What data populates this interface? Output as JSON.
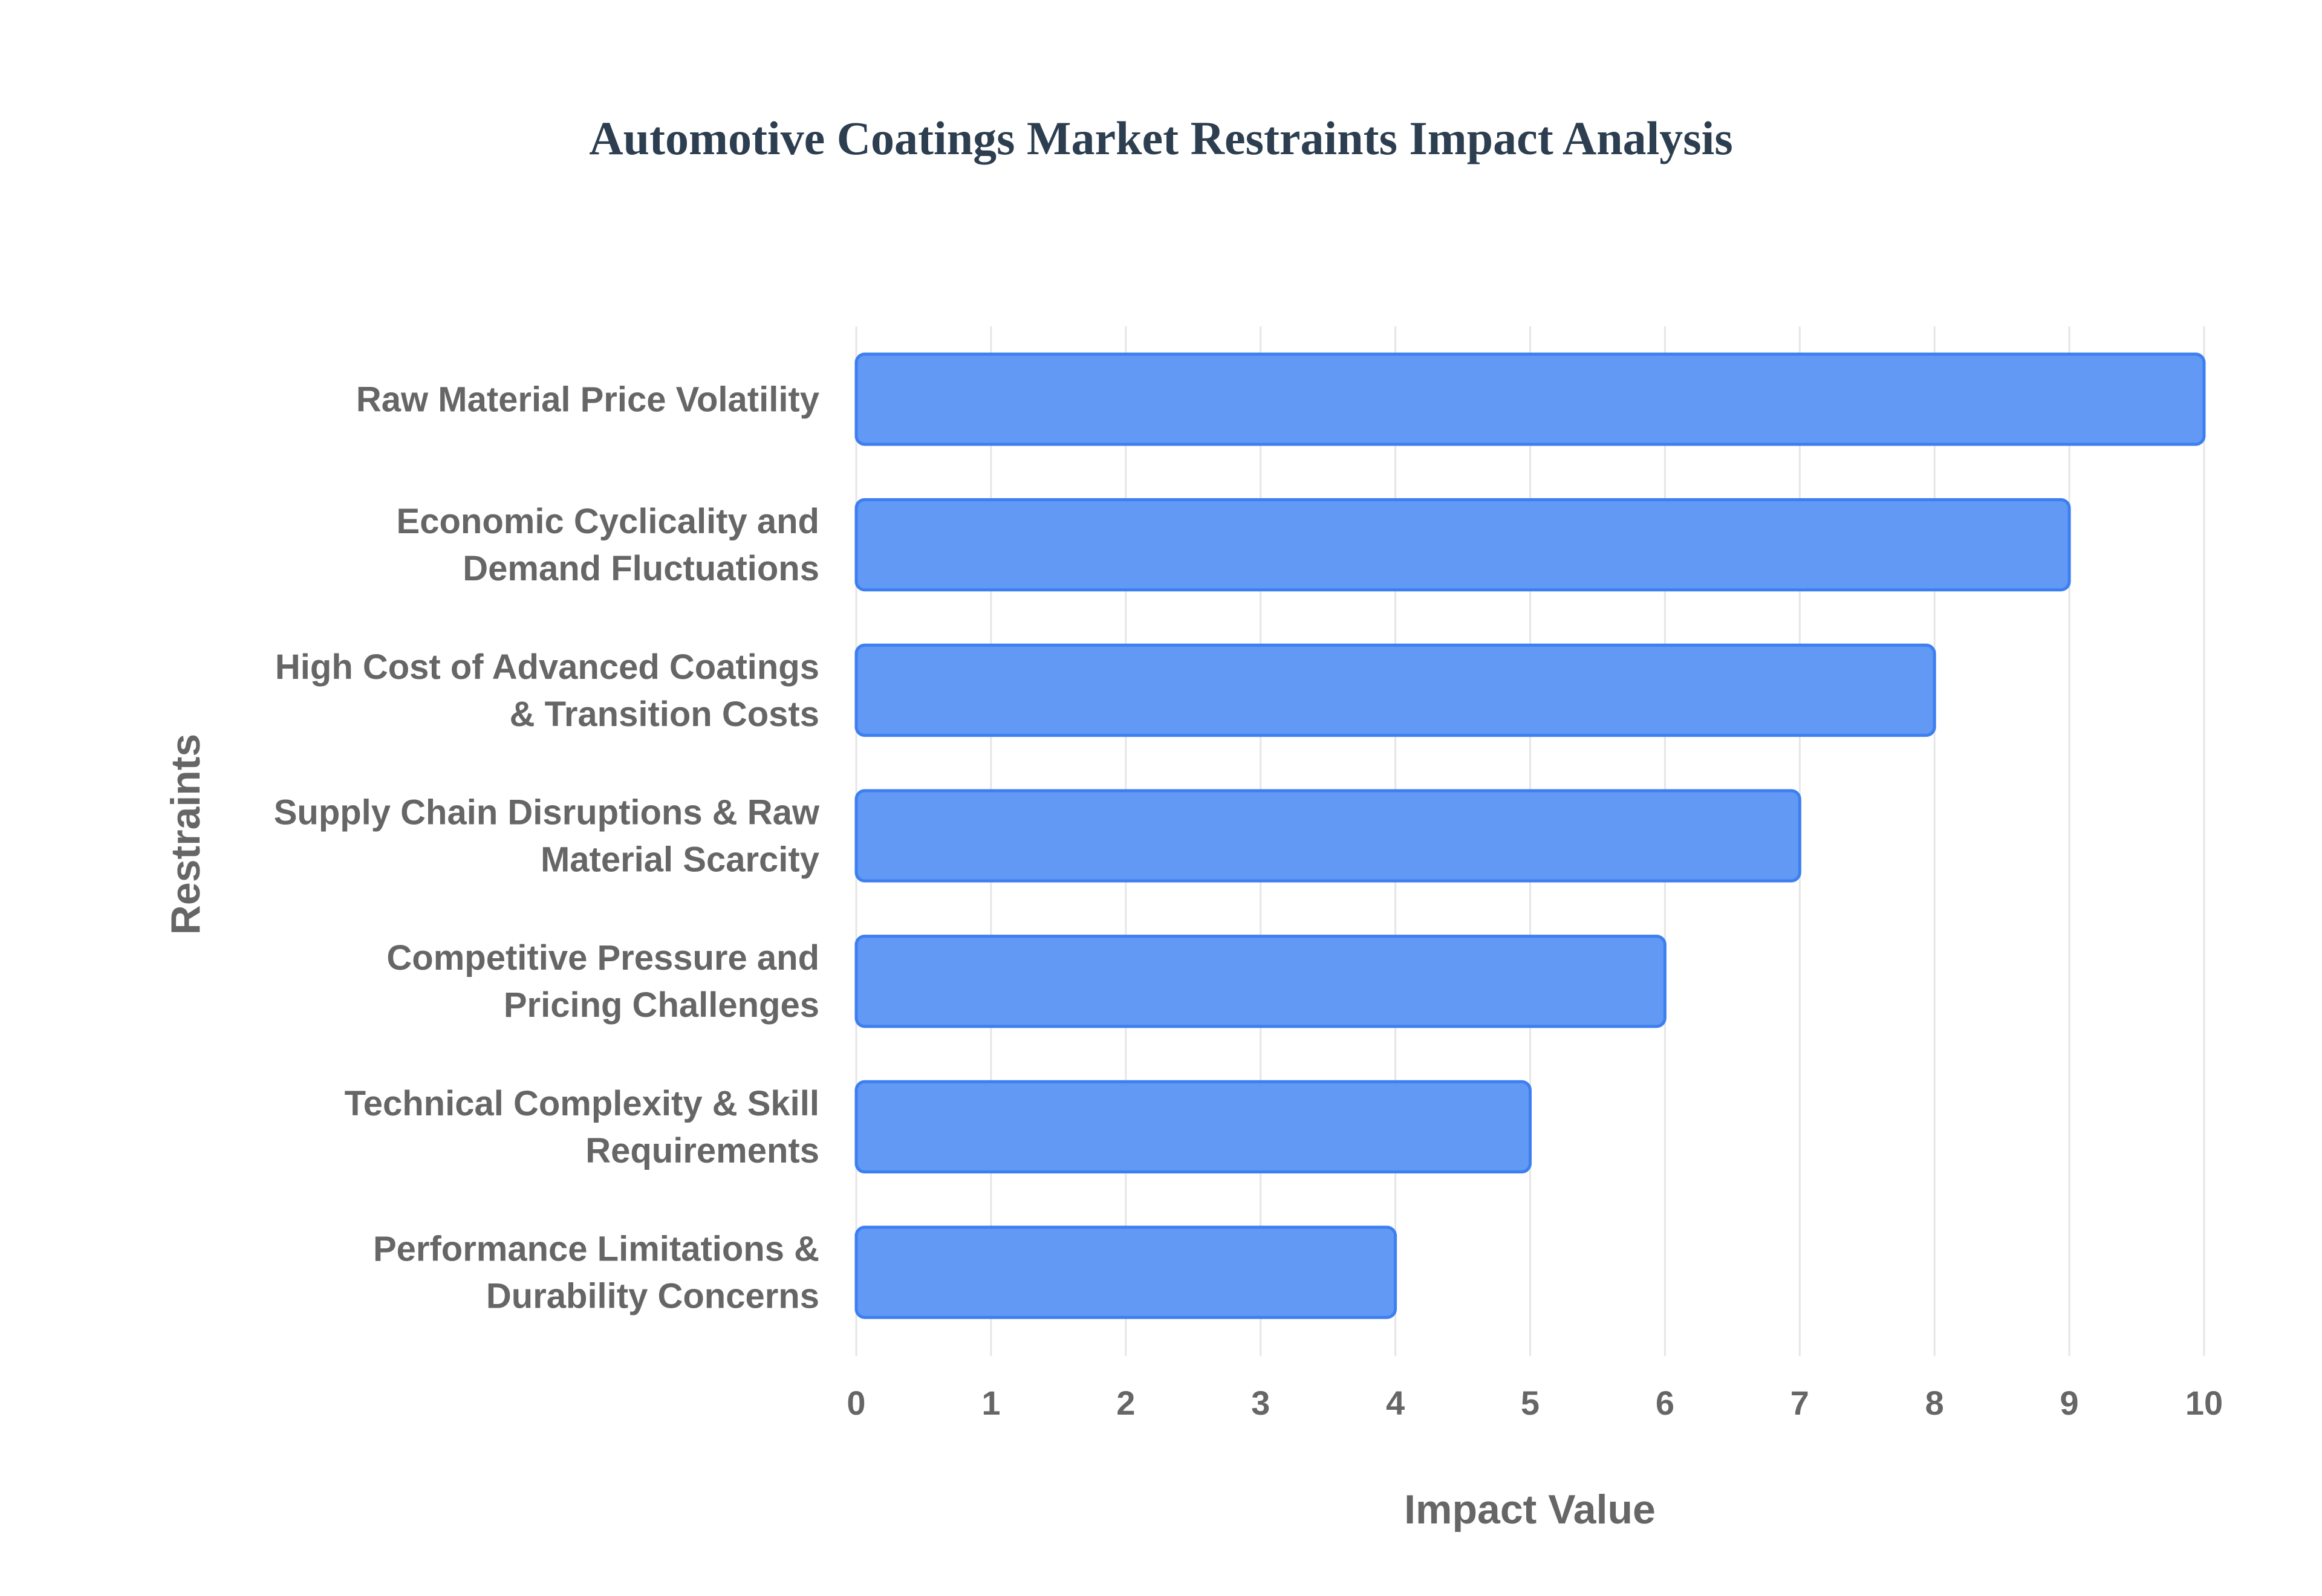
{
  "chart_data": {
    "type": "bar",
    "orientation": "horizontal",
    "title": "Automotive Coatings Market Restraints Impact Analysis",
    "xlabel": "Impact Value",
    "ylabel": "Restraints",
    "xlim": [
      0,
      10
    ],
    "x_ticks": [
      "0",
      "1",
      "2",
      "3",
      "4",
      "5",
      "6",
      "7",
      "8",
      "9",
      "10"
    ],
    "grid": true,
    "legend": "none",
    "categories": [
      [
        "Raw Material Price Volatility"
      ],
      [
        "Economic Cyclicality and",
        "Demand Fluctuations"
      ],
      [
        "High Cost of Advanced Coatings",
        "& Transition Costs"
      ],
      [
        "Supply Chain Disruptions & Raw",
        "Material Scarcity"
      ],
      [
        "Competitive Pressure and",
        "Pricing Challenges"
      ],
      [
        "Technical Complexity & Skill",
        "Requirements"
      ],
      [
        "Performance Limitations &",
        "Durability Concerns"
      ]
    ],
    "values": [
      10,
      9,
      8,
      7,
      6,
      5,
      4
    ],
    "colors": {
      "bar_fill": "#6199f4",
      "bar_border": "#3d7ff0",
      "grid": "#e6e6e6",
      "text": "#666666",
      "title": "#2c3e50"
    }
  }
}
